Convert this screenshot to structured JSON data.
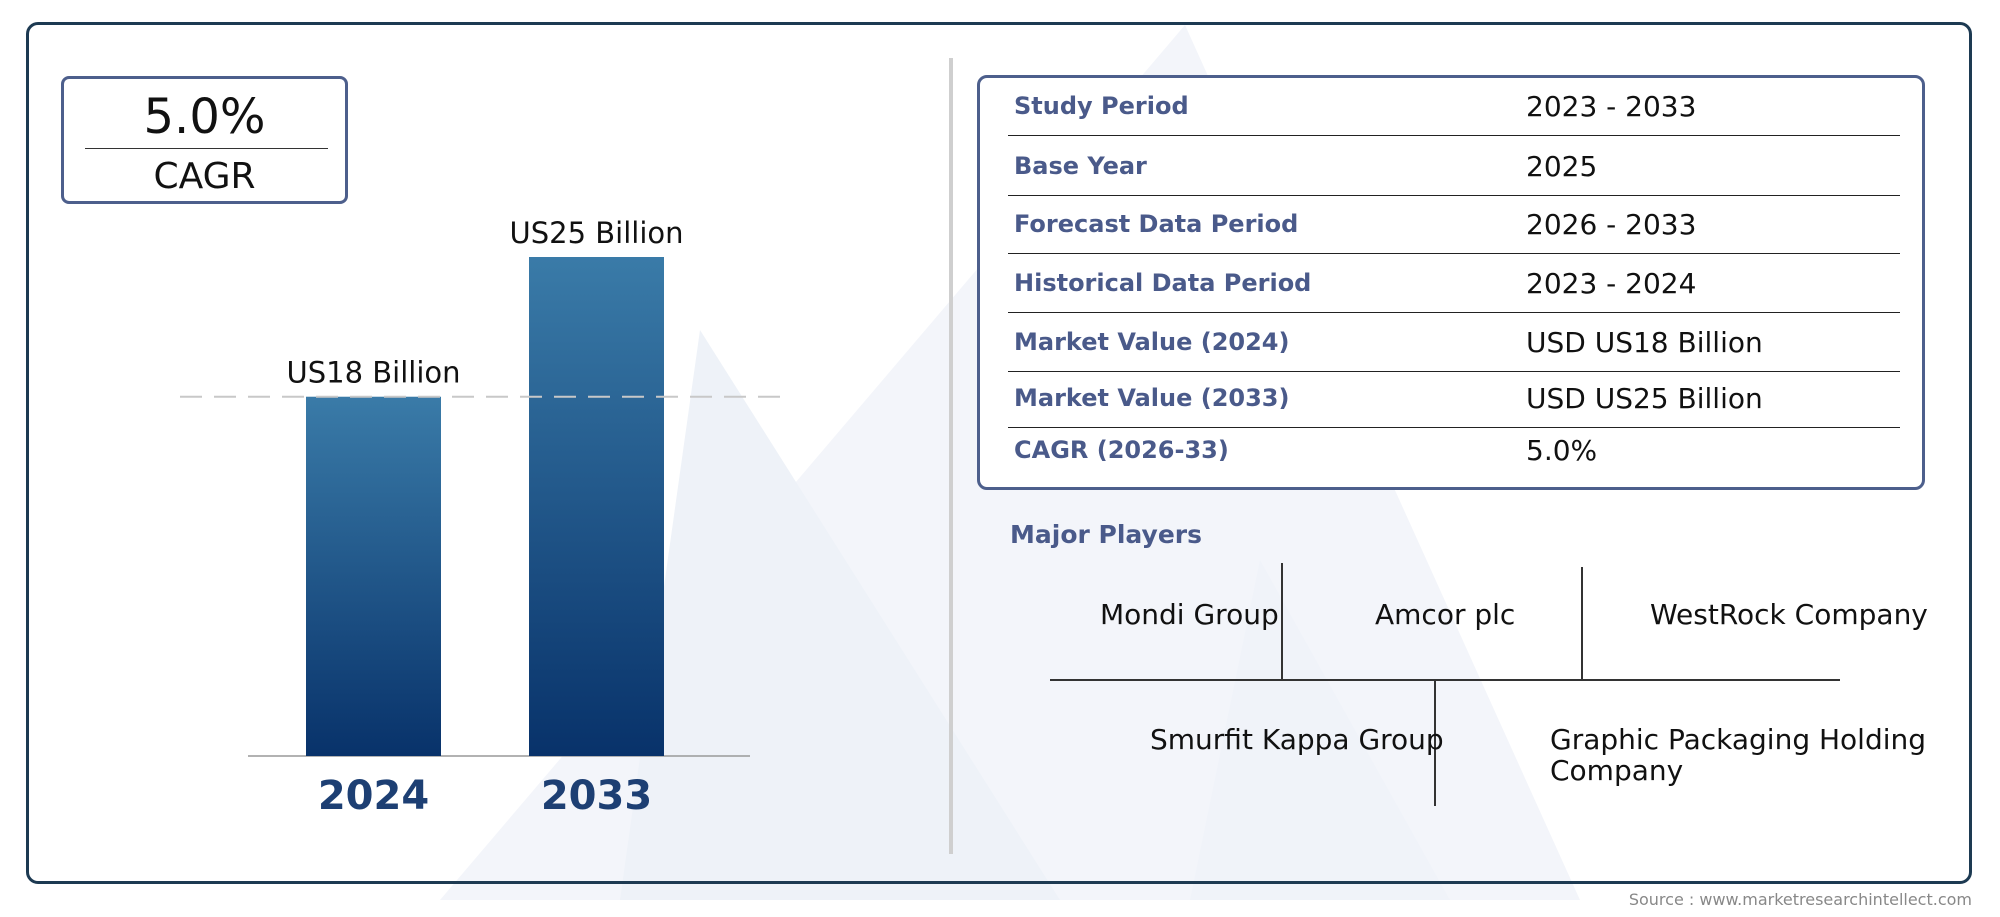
{
  "cagr_box": {
    "value": "5.0%",
    "label": "CAGR"
  },
  "chart_data": {
    "type": "bar",
    "categories": [
      "2024",
      "2033"
    ],
    "values": [
      18,
      25
    ],
    "value_labels": [
      "US18 Billion",
      "US25 Billion"
    ],
    "unit": "USD Billion",
    "ylim": [
      0,
      25
    ],
    "grid": false,
    "reference_line": {
      "value": 18,
      "style": "dashed"
    },
    "colors": {
      "bar_top": "#3a7ba8",
      "bar_bottom": "#08326a",
      "category_label": "#1d3f73"
    }
  },
  "info_table": {
    "rows": [
      {
        "key": "Study Period",
        "value": "2023 - 2033"
      },
      {
        "key": "Base Year",
        "value": "2025"
      },
      {
        "key": "Forecast Data Period",
        "value": "2026 - 2033"
      },
      {
        "key": "Historical Data Period",
        "value": "2023 - 2024"
      },
      {
        "key": "Market Value (2024)",
        "value": "USD US18 Billion"
      },
      {
        "key": "Market Value (2033)",
        "value": "USD US25 Billion"
      },
      {
        "key": "CAGR (2026-33)",
        "value": "5.0%"
      }
    ]
  },
  "major_players": {
    "title": "Major Players",
    "players": [
      "Mondi Group",
      "Amcor plc",
      "WestRock Company",
      "Smurfit Kappa Group",
      "Graphic Packaging Holding Company"
    ]
  },
  "source": "Source : www.marketresearchintellect.com"
}
